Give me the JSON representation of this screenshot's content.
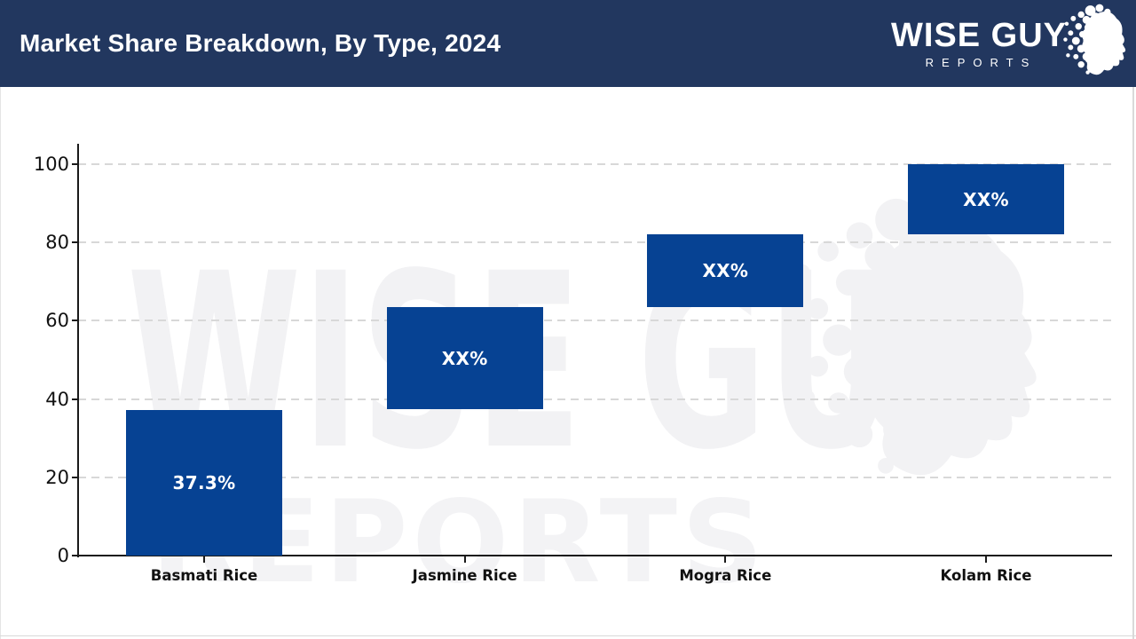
{
  "header": {
    "title": "Market Share Breakdown, By Type, 2024",
    "logo": {
      "line1": "WISE GUY",
      "line2": "REPORTS"
    }
  },
  "watermark": {
    "line1": "WISE GUY",
    "line2": "REPORTS"
  },
  "chart_data": {
    "type": "bar",
    "subtype": "stacked-waterfall",
    "title": "Market Share Breakdown, By Type, 2024",
    "categories": [
      "Basmati Rice",
      "Jasmine Rice",
      "Mogra Rice",
      "Kolam Rice"
    ],
    "segments": [
      {
        "category": "Basmati Rice",
        "start": 0,
        "end": 37.3,
        "label": "37.3%"
      },
      {
        "category": "Jasmine Rice",
        "start": 37.3,
        "end": 63.5,
        "label": "XX%"
      },
      {
        "category": "Mogra Rice",
        "start": 63.5,
        "end": 82.0,
        "label": "XX%"
      },
      {
        "category": "Kolam Rice",
        "start": 82.0,
        "end": 100.0,
        "label": "XX%"
      }
    ],
    "ylim": [
      0,
      100
    ],
    "yticks": [
      0,
      20,
      40,
      60,
      80,
      100
    ],
    "xlabel": "",
    "ylabel": "",
    "grid": "dashed-horizontal",
    "legend": "none",
    "bar_color": "#064293",
    "bar_label_color": "#ffffff"
  },
  "colors": {
    "header_bg": "#22375f",
    "bar": "#064293",
    "grid": "#d8d8d8",
    "axis": "#1a1a1a",
    "watermark": "#f2f2f4"
  }
}
